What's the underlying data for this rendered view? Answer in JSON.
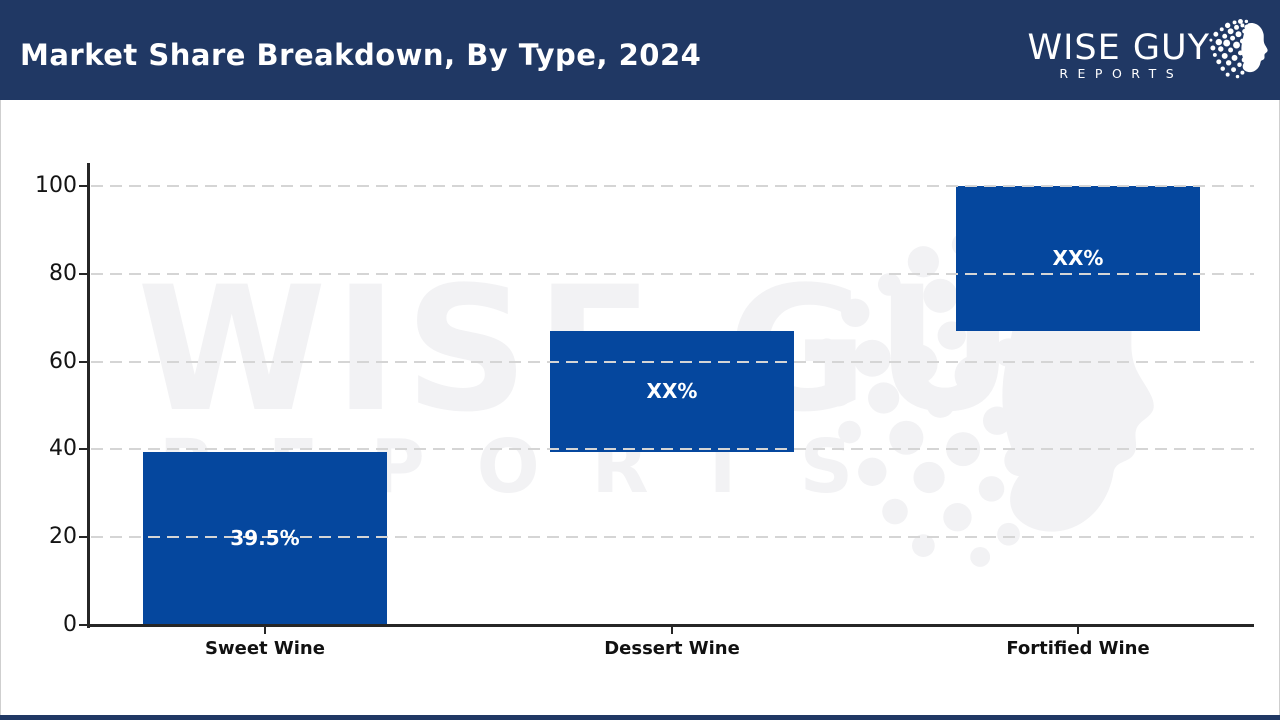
{
  "header": {
    "title": "Market Share Breakdown, By Type, 2024",
    "logo": {
      "brand": "WISE GUY",
      "sub": "REPORTS"
    }
  },
  "watermark": {
    "brand": "WISE GUY",
    "sub": "REPORTS"
  },
  "chart_data": {
    "type": "bar",
    "variant": "floating-waterfall",
    "title": "Market Share Breakdown, By Type, 2024",
    "categories": [
      "Sweet Wine",
      "Dessert Wine",
      "Fortified Wine"
    ],
    "segments": [
      {
        "category": "Sweet Wine",
        "start": 0,
        "end": 39.5,
        "label": "39.5%"
      },
      {
        "category": "Dessert Wine",
        "start": 39.5,
        "end": 67,
        "label": "XX%"
      },
      {
        "category": "Fortified Wine",
        "start": 67,
        "end": 100,
        "label": "XX%"
      }
    ],
    "xlabel": "",
    "ylabel": "",
    "y_ticks": [
      0,
      20,
      40,
      60,
      80,
      100
    ],
    "ylim": [
      0,
      105
    ],
    "grid": {
      "horizontal": true,
      "style": "dashed"
    },
    "legend": "none",
    "bar_color": "#05479e",
    "bar_label_color": "#ffffff"
  },
  "colors": {
    "header_bg": "#203864",
    "footer_bg": "#203864",
    "bar": "#05479e",
    "gridline": "#d5d5d5",
    "axis": "#262626",
    "watermark": "#f2f2f4",
    "page_bg": "#ffffff"
  }
}
